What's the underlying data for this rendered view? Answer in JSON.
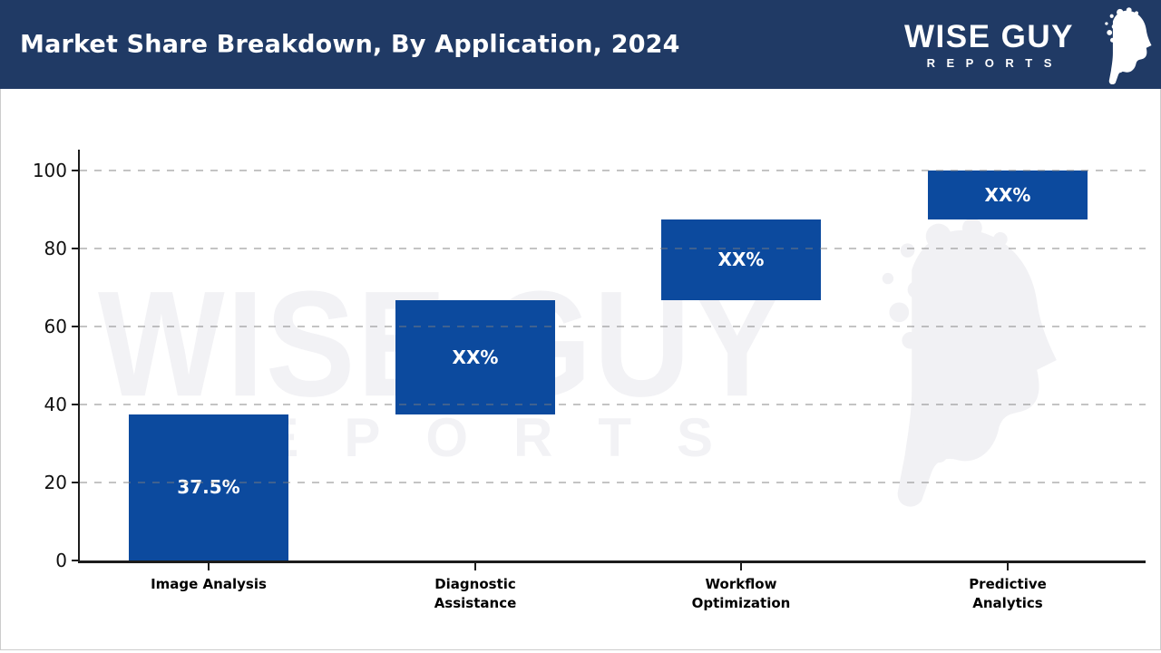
{
  "header": {
    "title": "Market Share Breakdown, By Application, 2024",
    "logo": {
      "wordmark": "WISE GUY",
      "reports": "REPORTS"
    }
  },
  "watermark": {
    "wordmark": "WISE GUY",
    "reports": "REPORTS"
  },
  "chart_data": {
    "type": "bar",
    "variant": "waterfall",
    "title": "Market Share Breakdown, By Application, 2024",
    "categories": [
      "Image Analysis",
      "Diagnostic Assistance",
      "Workflow Optimization",
      "Predictive Analytics"
    ],
    "category_lines": [
      [
        "Image Analysis"
      ],
      [
        "Diagnostic",
        "Assistance"
      ],
      [
        "Workflow",
        "Optimization"
      ],
      [
        "Predictive",
        "Analytics"
      ]
    ],
    "bars": [
      {
        "category": "Image Analysis",
        "label": "37.5%",
        "start": 0,
        "end": 37.5,
        "value": 37.5
      },
      {
        "category": "Diagnostic Assistance",
        "label": "XX%",
        "start": 37.5,
        "end": 66.7,
        "value": 29.2
      },
      {
        "category": "Workflow Optimization",
        "label": "XX%",
        "start": 66.7,
        "end": 87.5,
        "value": 20.8
      },
      {
        "category": "Predictive Analytics",
        "label": "XX%",
        "start": 87.5,
        "end": 100,
        "value": 12.5
      }
    ],
    "xlabel": "",
    "ylabel": "",
    "ylim": [
      0,
      100
    ],
    "yticks": [
      0,
      20,
      40,
      60,
      80,
      100
    ],
    "grid": {
      "axis": "y",
      "style": "dashed",
      "on_top_of_bars": true
    },
    "legend": "none",
    "colors": {
      "bar": "#0c4a9e",
      "bar_label": "#ffffff",
      "header_bg": "#203a65",
      "grid": "#d8d8d8",
      "axis": "#1c1c1c",
      "watermark": "#f2f2f5"
    }
  }
}
